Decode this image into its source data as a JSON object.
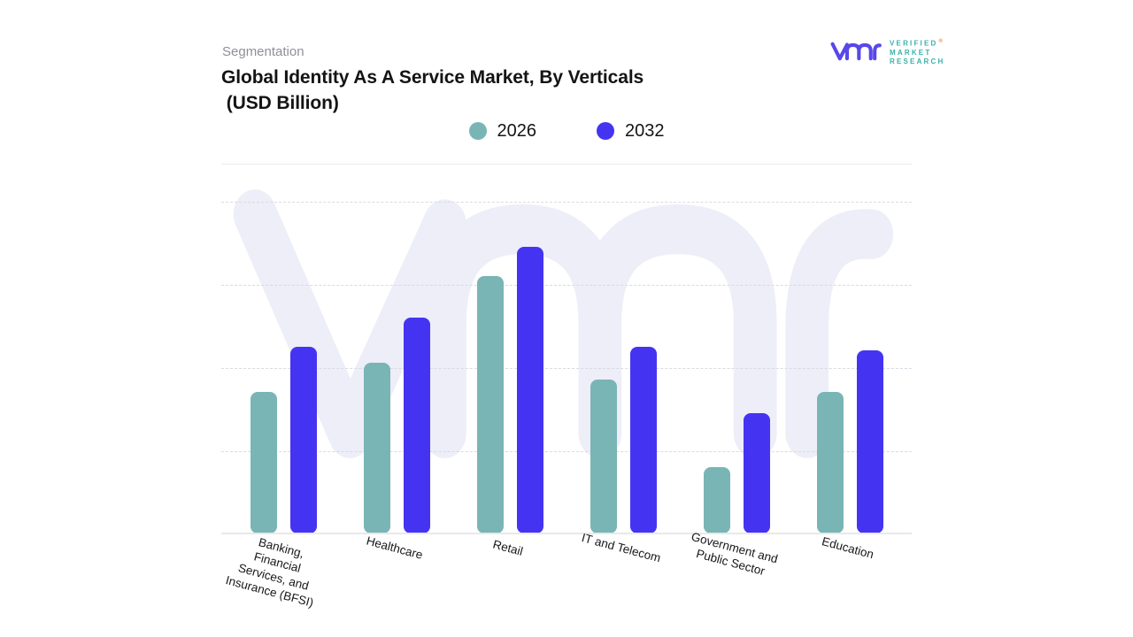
{
  "header": {
    "eyebrow": "Segmentation",
    "title_line1": "Global Identity As A Service Market, By Verticals",
    "title_line2": " (USD Billion)"
  },
  "logo": {
    "text_lines": [
      "VERIFIED",
      "MARKET",
      "RESEARCH"
    ],
    "registered_mark": "®",
    "glyph_color": "#5847E9",
    "text_color": "#38B1AB"
  },
  "legend": [
    {
      "label": "2026",
      "color": "#7AB5B5"
    },
    {
      "label": "2032",
      "color": "#4434F2"
    }
  ],
  "colors": {
    "series_2026": "#7AB5B5",
    "series_2032": "#4434F2",
    "watermark": "#EDEEF8",
    "gridline": "#D8DBE1",
    "axis": "#E8E8EC"
  },
  "chart_data": {
    "type": "bar",
    "title": "Global Identity As A Service Market, By Verticals (USD Billion)",
    "xlabel": "",
    "ylabel": "USD Billion",
    "categories": [
      "Banking,\nFinancial\nServices, and\nInsurance (BFSI)",
      "Healthcare",
      "Retail",
      "IT and Telecom",
      "Government and\nPublic Sector",
      "Education"
    ],
    "series": [
      {
        "name": "2026",
        "color": "#7AB5B5",
        "values": [
          1.7,
          2.05,
          3.1,
          1.85,
          0.8,
          1.7
        ]
      },
      {
        "name": "2032",
        "color": "#4434F2",
        "values": [
          2.25,
          2.6,
          3.45,
          2.25,
          1.45,
          2.2
        ]
      }
    ],
    "value_note": "y-axis has no numeric tick labels; values estimated in gridline units",
    "ylim": [
      0,
      4.45
    ],
    "gridline_step": 1,
    "grid": "horizontal-dashed",
    "legend_position": "top-center",
    "xtick_rotation_deg": 15
  }
}
